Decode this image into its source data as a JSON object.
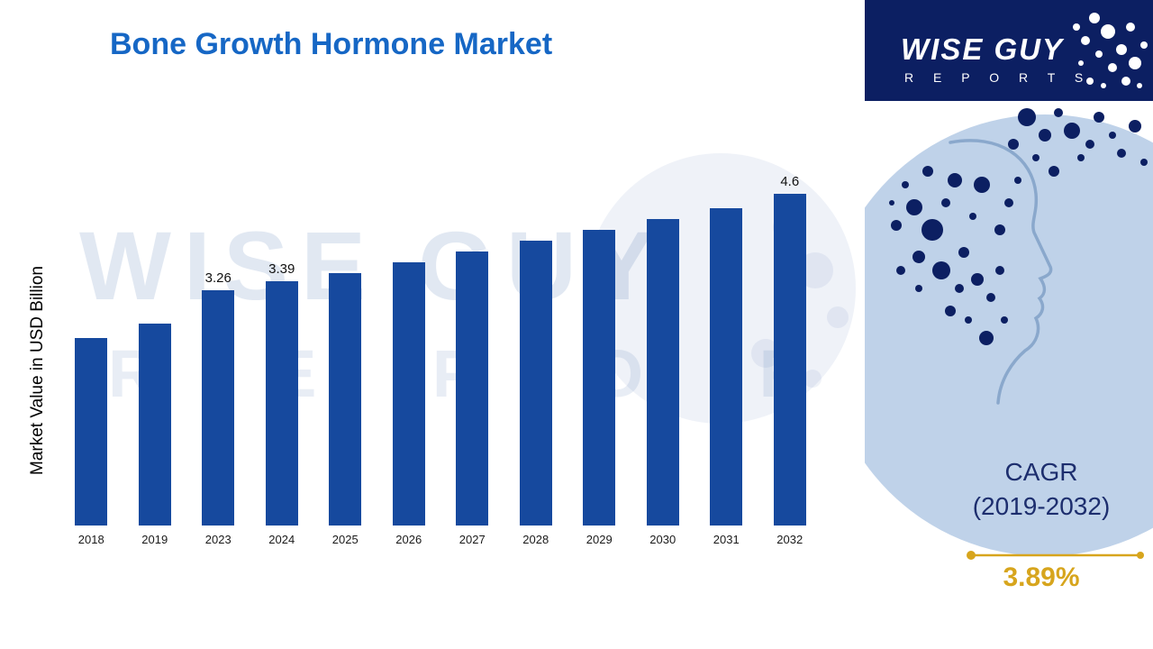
{
  "title": "Bone Growth Hormone Market",
  "ylabel": "Market Value in USD Billion",
  "chart_data": {
    "type": "bar",
    "categories": [
      "2018",
      "2019",
      "2023",
      "2024",
      "2025",
      "2026",
      "2027",
      "2028",
      "2029",
      "2030",
      "2031",
      "2032"
    ],
    "values": [
      2.6,
      2.8,
      3.26,
      3.39,
      3.5,
      3.65,
      3.8,
      3.95,
      4.1,
      4.25,
      4.4,
      4.6
    ],
    "data_labels": [
      "",
      "",
      "3.26",
      "3.39",
      "",
      "",
      "",
      "",
      "",
      "",
      "",
      "4.6"
    ],
    "title": "Bone Growth Hormone Market",
    "xlabel": "",
    "ylabel": "Market Value in USD Billion",
    "bar_color": "#16499e",
    "grid": false,
    "legend": false
  },
  "watermark": {
    "line1": "WISE GUY",
    "line2": "R E P O R T S"
  },
  "logo": {
    "line1": "WISE GUY",
    "line2": "R E P O R T S"
  },
  "cagr": {
    "label": "CAGR",
    "range": "(2019-2032)",
    "value": "3.89%"
  },
  "colors": {
    "title": "#1667c5",
    "bar": "#16499e",
    "navy_panel": "#0c1f62",
    "light_circle": "#bfd2e9",
    "gold": "#d7a51d",
    "cagr_text": "#1d2e6e"
  }
}
